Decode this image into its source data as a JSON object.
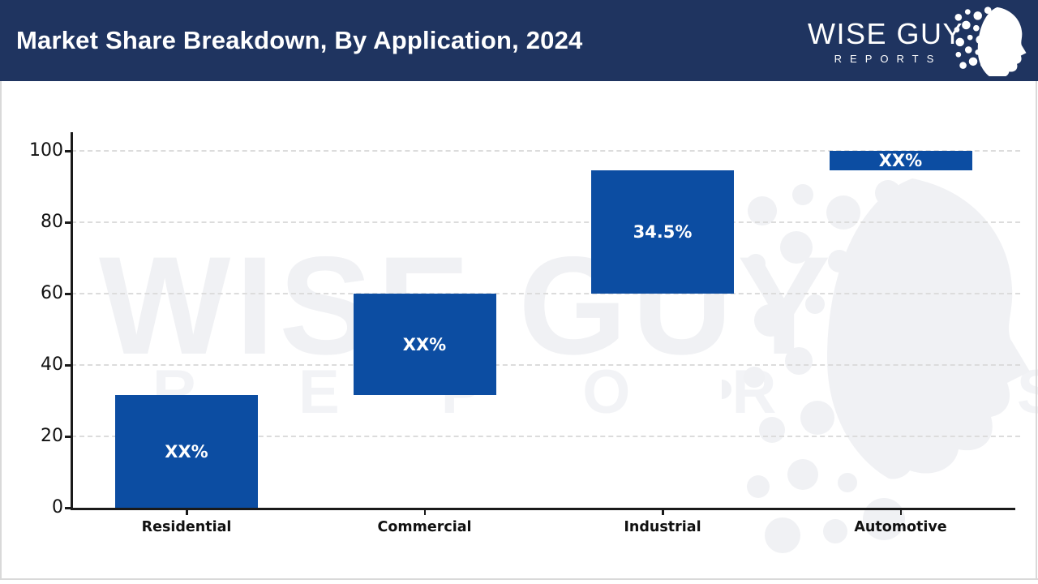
{
  "header": {
    "title": "Market Share Breakdown, By Application, 2024",
    "logo_line1": "WISE GUY",
    "logo_line2": "REPORTS",
    "bg_color": "#1f3460"
  },
  "watermark": {
    "line1": "WISE GUY",
    "line2": "R E P O R T S"
  },
  "chart_data": {
    "type": "bar",
    "subtype": "waterfall",
    "title": "Market Share Breakdown, By Application, 2024",
    "categories": [
      "Residential",
      "Commercial",
      "Industrial",
      "Automotive"
    ],
    "segments": [
      {
        "category": "Residential",
        "start": 0,
        "end": 31.5,
        "label": "XX%"
      },
      {
        "category": "Commercial",
        "start": 31.5,
        "end": 60,
        "label": "XX%"
      },
      {
        "category": "Industrial",
        "start": 60,
        "end": 94.5,
        "label": "34.5%"
      },
      {
        "category": "Automotive",
        "start": 94.5,
        "end": 100,
        "label": "XX%"
      }
    ],
    "yticks": [
      0,
      20,
      40,
      60,
      80,
      100
    ],
    "ylim": [
      0,
      105
    ],
    "xlabel": "",
    "ylabel": "",
    "bar_color": "#0c4da2",
    "grid": {
      "horizontal": true,
      "style": "dashed",
      "color": "#dcdcdc"
    },
    "legend": null
  }
}
